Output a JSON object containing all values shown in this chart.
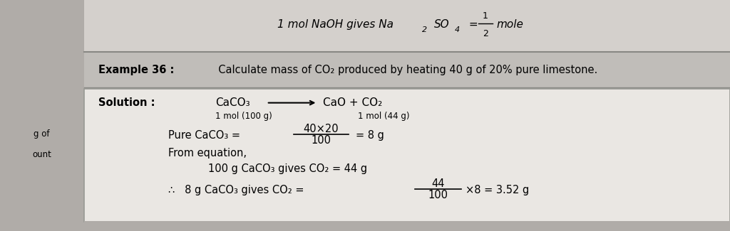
{
  "bg_color": "#c8c4c0",
  "top_strip_color": "#d8d4d0",
  "example_strip_color": "#c8c4c0",
  "solution_box_color": "#e8e6e2",
  "top_text_1": "1 mol NaOH gives Na",
  "top_text_2": "2",
  "top_text_3": "SO",
  "top_text_4": "4",
  "top_text_5": " = ",
  "top_text_frac_num": "1",
  "top_text_frac_den": "2",
  "top_text_6": "mole",
  "example_bold": "Example 36 :",
  "example_rest": "  Calculate mass of CO₂ produced by heating 40 g of 20% pure limestone.",
  "solution_label": "Solution :",
  "caco3_label": "CaCO₃",
  "caco3_sub": "1 mol (100 g)",
  "cao_co2": "CaO + CO₂",
  "co2_sub": "1 mol (44 g)",
  "pure_prefix": "Pure CaCO₃ =",
  "pure_frac_num": "40×20",
  "pure_frac_den": "100",
  "pure_suffix": "= 8 g",
  "from_eq": "From equation,",
  "line_100g": "100 g CaCO₃ gives CO₂ = 44 g",
  "therefore_prefix": "∴   8 g CaCO₃ gives CO₂ =",
  "last_frac_num": "44",
  "last_frac_den": "100",
  "last_suffix": "×8 = 3.52 g",
  "left_tab_labels": [
    "g of",
    "ount"
  ],
  "figsize": [
    10.24,
    3.25
  ],
  "dpi": 100
}
